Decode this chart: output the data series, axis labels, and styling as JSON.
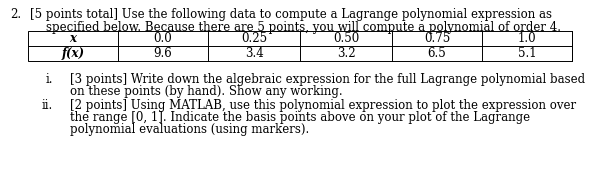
{
  "problem_number": "2.",
  "header_line1": "[5 points total] Use the following data to compute a Lagrange polynomial expression as",
  "header_line2": "specified below. Because there are 5 points, you will compute a polynomial of order 4.",
  "table_x_label": "x",
  "table_fx_label": "f(x)",
  "x_values": [
    "0.0",
    "0.25",
    "0.50",
    "0.75",
    "1.0"
  ],
  "fx_values": [
    "9.6",
    "3.4",
    "3.2",
    "6.5",
    "5.1"
  ],
  "sub_i_label": "i.",
  "sub_i_line1": "[3 points] Write down the algebraic expression for the full Lagrange polynomial based",
  "sub_i_line2": "on these points (by hand). Show any working.",
  "sub_ii_label": "ii.",
  "sub_ii_line1": "[2 points] Using MATLAB, use this polynomial expression to plot the expression over",
  "sub_ii_line2": "the range [0, 1]. Indicate the basis points above on your plot of the Lagrange",
  "sub_ii_line3": "polynomial evaluations (using markers).",
  "background_color": "#ffffff",
  "text_color": "#000000",
  "font_size": 8.5
}
